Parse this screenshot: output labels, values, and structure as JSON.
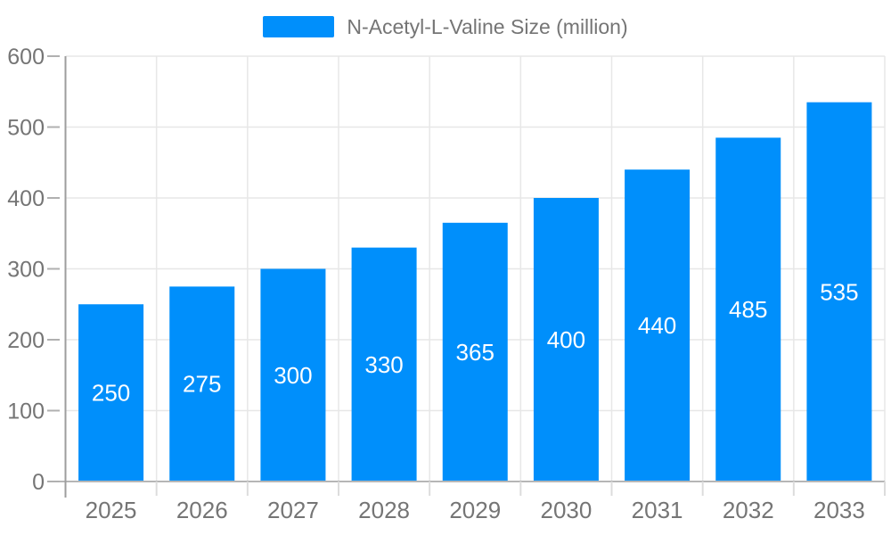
{
  "chart_data": {
    "type": "bar",
    "title": "N-Acetyl-L-Valine Size (million)",
    "categories": [
      "2025",
      "2026",
      "2027",
      "2028",
      "2029",
      "2030",
      "2031",
      "2032",
      "2033"
    ],
    "series": [
      {
        "name": "N-Acetyl-L-Valine Size (million)",
        "values": [
          250,
          275,
          300,
          330,
          365,
          400,
          440,
          485,
          535
        ]
      }
    ],
    "xlabel": "",
    "ylabel": "",
    "ylim": [
      0,
      600
    ],
    "yticks": [
      0,
      100,
      200,
      300,
      400,
      500,
      600
    ],
    "grid": true,
    "legend_position": "top",
    "value_label_position": "inside-center",
    "colors": {
      "bar": "#008FFB",
      "grid": "#e7e7e7",
      "x_axis_line": "#b6b6b6",
      "y_axis_line": "#9e9e9e",
      "tick": "#b0b0b0",
      "x_tick": "#dcdcdc",
      "label_text": "#757575",
      "value_text": "#ffffff"
    }
  }
}
